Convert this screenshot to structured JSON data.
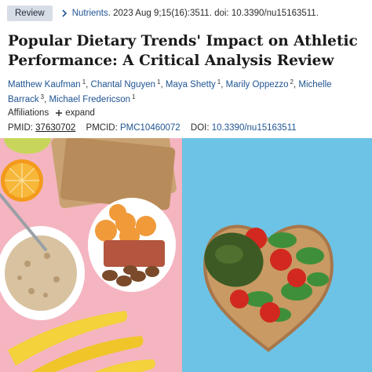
{
  "header": {
    "badge": "Review",
    "journal": "Nutrients",
    "citation_rest": ". 2023 Aug 9;15(16):3511. doi: 10.3390/nu15163511."
  },
  "title": "Popular Dietary Trends' Impact on Athletic Performance: A Critical Analysis Review",
  "authors": [
    {
      "name": "Matthew Kaufman",
      "aff": "1"
    },
    {
      "name": "Chantal Nguyen",
      "aff": "1"
    },
    {
      "name": "Maya Shetty",
      "aff": "1"
    },
    {
      "name": "Marily Oppezzo",
      "aff": "2"
    },
    {
      "name": "Michelle Barrack",
      "aff": "3"
    },
    {
      "name": "Michael Fredericson",
      "aff": "1"
    }
  ],
  "affiliations": {
    "label": "Affiliations",
    "expand": "expand"
  },
  "ids": {
    "pmid_label": "PMID:",
    "pmid": "37630702",
    "pmcid_label": "PMCID:",
    "pmcid": "PMC10460072",
    "doi_label": "DOI:",
    "doi": "10.3390/nu15163511"
  },
  "colors": {
    "link": "#205493",
    "badge_bg": "#d7dde5",
    "photo_left_bg": "#f4b5c0",
    "photo_right_bg": "#6cc3e6"
  },
  "icons": [
    "chevron-right-icon",
    "plus-icon"
  ]
}
